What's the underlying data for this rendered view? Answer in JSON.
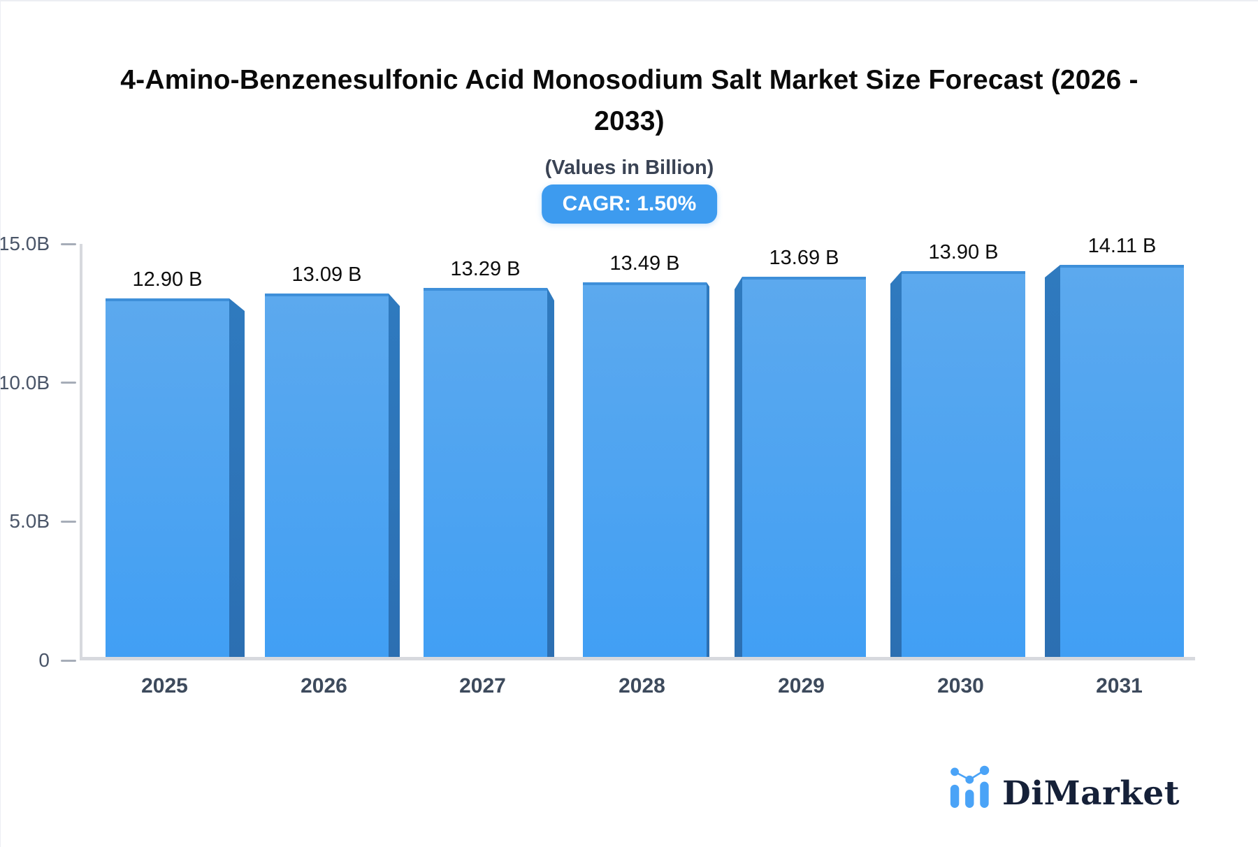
{
  "header": {
    "cagr_label": "CAGR: 1.50%"
  },
  "footer": {
    "brand": "DiMarket",
    "logo_icon": "bar-line-chart-logo-icon"
  },
  "colors": {
    "bar_face_top": "#5ca9ee",
    "bar_face_bottom": "#419ff4",
    "bar_side": "#2d74b8",
    "bar_top_edge": "#3e8fd9",
    "badge_bg": "#3d9bef",
    "axis_line": "#d7d9de",
    "tick_label": "#4a5568",
    "x_label": "#3d4a5c",
    "title_text": "#0a0a0a",
    "subtitle_text": "#3a4354",
    "logo_blue": "#4aa3f7",
    "logo_navy": "#152038"
  },
  "chart_data": {
    "type": "bar",
    "title": "4-Amino-Benzenesulfonic Acid Monosodium Salt Market Size Forecast (2026 - 2033)",
    "subtitle": "(Values in Billion)",
    "categories": [
      "2025",
      "2026",
      "2027",
      "2028",
      "2029",
      "2030",
      "2031"
    ],
    "values": [
      12.9,
      13.09,
      13.29,
      13.49,
      13.69,
      13.9,
      14.11
    ],
    "bar_labels": [
      "12.90 B",
      "13.09 B",
      "13.29 B",
      "13.49 B",
      "13.69 B",
      "13.90 B",
      "14.11 B"
    ],
    "xlabel": "",
    "ylabel": "",
    "ylim": [
      0,
      15
    ],
    "yticks": [
      {
        "label": "15.0B",
        "value": 15
      },
      {
        "label": "10.0B",
        "value": 10
      },
      {
        "label": "5.0B",
        "value": 5
      },
      {
        "label": "0",
        "value": 0
      }
    ],
    "grid": false,
    "legend": false,
    "style": "pseudo-3d-bars, perspective from center"
  }
}
